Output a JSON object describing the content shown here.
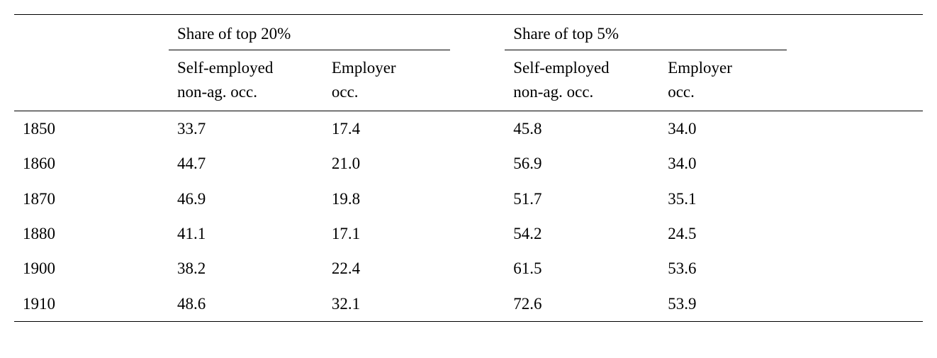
{
  "table": {
    "type": "table",
    "background_color": "#ffffff",
    "text_color": "#000000",
    "rule_color": "#000000",
    "font_family": "Palatino Linotype",
    "font_size_pt": 17,
    "group_headers": {
      "g1": "Share of top 20%",
      "g2": "Share of top 5%"
    },
    "sub_headers": {
      "se_line1": "Self-employed",
      "se_line2": "non-ag. occ.",
      "emp_line1": "Employer",
      "emp_line2": "occ."
    },
    "columns": [
      "year",
      "top20_self",
      "top20_emp",
      "top5_self",
      "top5_emp"
    ],
    "rows": [
      {
        "year": "1850",
        "top20_self": "33.7",
        "top20_emp": "17.4",
        "top5_self": "45.8",
        "top5_emp": "34.0"
      },
      {
        "year": "1860",
        "top20_self": "44.7",
        "top20_emp": "21.0",
        "top5_self": "56.9",
        "top5_emp": "34.0"
      },
      {
        "year": "1870",
        "top20_self": "46.9",
        "top20_emp": "19.8",
        "top5_self": "51.7",
        "top5_emp": "35.1"
      },
      {
        "year": "1880",
        "top20_self": "41.1",
        "top20_emp": "17.1",
        "top5_self": "54.2",
        "top5_emp": "24.5"
      },
      {
        "year": "1900",
        "top20_self": "38.2",
        "top20_emp": "22.4",
        "top5_self": "61.5",
        "top5_emp": "53.6"
      },
      {
        "year": "1910",
        "top20_self": "48.6",
        "top20_emp": "32.1",
        "top5_self": "72.6",
        "top5_emp": "53.9"
      }
    ]
  }
}
